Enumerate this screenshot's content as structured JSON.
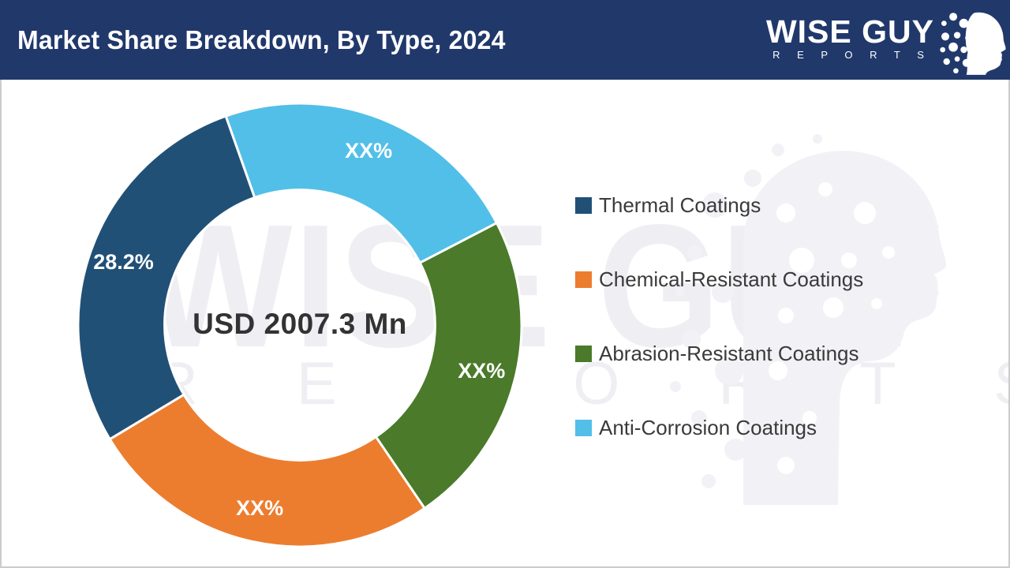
{
  "header": {
    "title": "Market Share Breakdown, By Type, 2024",
    "logo": {
      "line1": "WISE GUY",
      "line2": "R E P O R T S"
    }
  },
  "watermark": {
    "line1": "WISE GUY",
    "line2": "R E P O R T S"
  },
  "chart_data": {
    "type": "donut",
    "title": "Market Share Breakdown, By Type, 2024",
    "center_label": "USD 2007.3 Mn",
    "start_angle_deg": 109.5,
    "direction": "counterclockwise",
    "inner_radius_ratio": 0.61,
    "legend_position": "right",
    "slices": [
      {
        "name": "Thermal Coatings",
        "value_pct": 28.2,
        "label": "28.2%",
        "color": "#215077"
      },
      {
        "name": "Chemical-Resistant Coatings",
        "value_pct": 25.9,
        "label": "XX%",
        "color": "#EC7D2F"
      },
      {
        "name": "Abrasion-Resistant Coatings",
        "value_pct": 23.1,
        "label": "XX%",
        "color": "#4A7A2A"
      },
      {
        "name": "Anti-Corrosion Coatings",
        "value_pct": 22.8,
        "label": "XX%",
        "color": "#52BFE8"
      }
    ]
  }
}
